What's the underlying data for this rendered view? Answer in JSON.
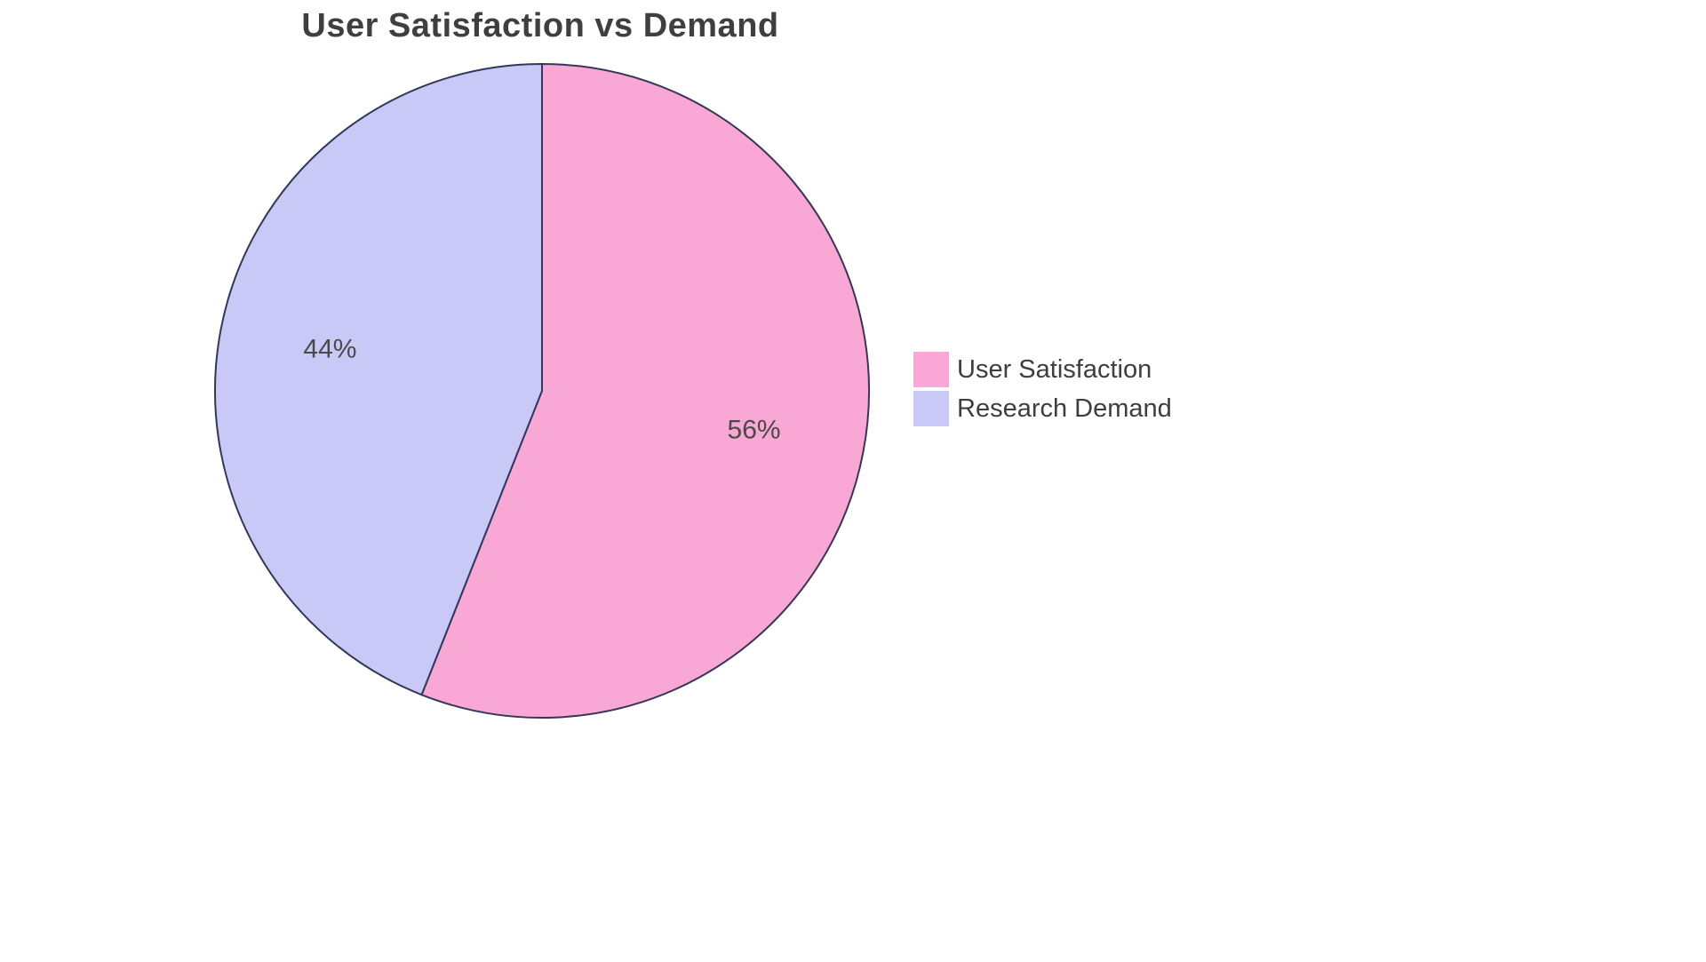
{
  "chart_data": {
    "type": "pie",
    "title": "User Satisfaction vs Demand",
    "labels": [
      "User Satisfaction",
      "Research Demand"
    ],
    "values": [
      56,
      44
    ],
    "slice_labels": [
      "56%",
      "44%"
    ],
    "colors": [
      "#F9A7D4",
      "#C8C9F6"
    ],
    "stroke_color": "#343759",
    "stroke_width": 2,
    "start_angle_deg": 0,
    "direction": "clockwise",
    "legend_position": "right",
    "label_color": "#4a4a4a",
    "title_color": "#3f3f3f"
  },
  "legend": {
    "items": [
      {
        "label": "User Satisfaction",
        "color": "#F9A7D4"
      },
      {
        "label": "Research Demand",
        "color": "#C8C9F6"
      }
    ]
  }
}
